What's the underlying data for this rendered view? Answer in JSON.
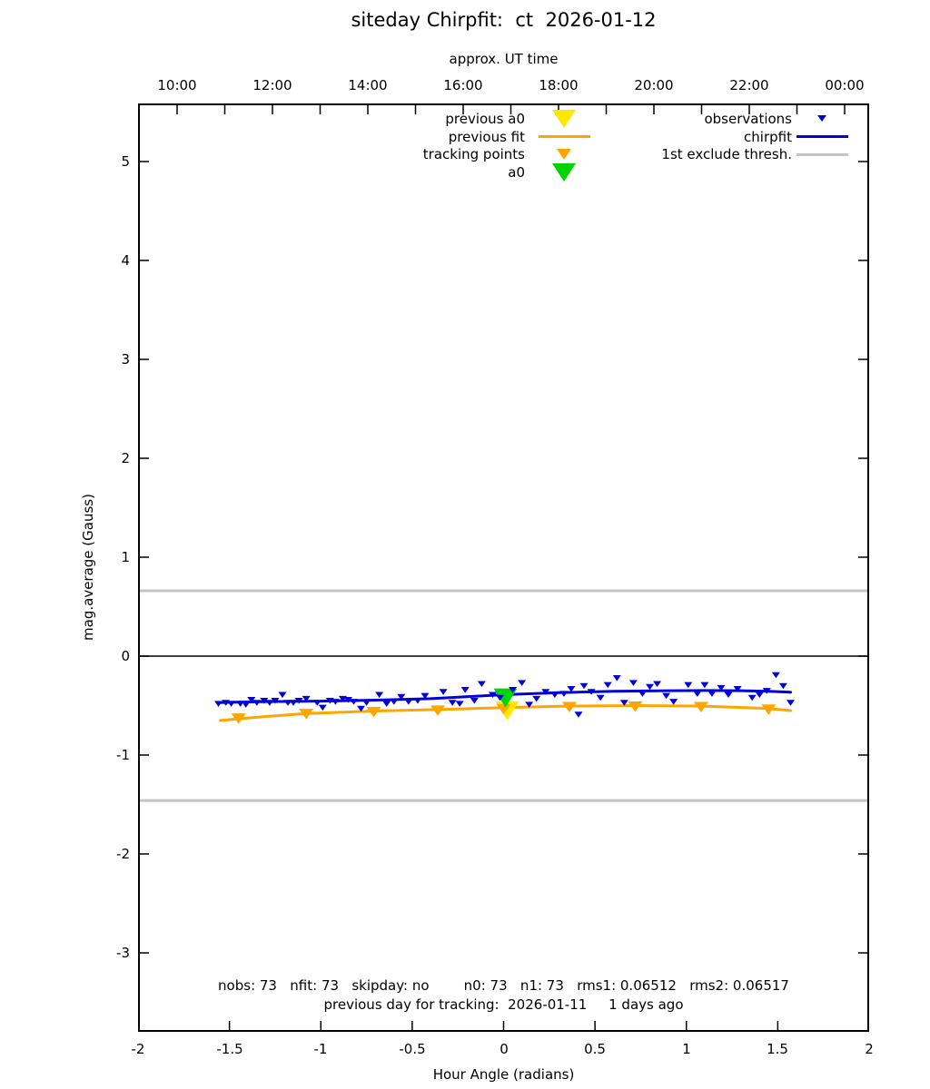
{
  "title": "siteday Chirpfit:  ct  2026-01-12",
  "stats": {
    "line1": "nobs: 73   nfit: 73   skipday: no        n0: 73   n1: 73   rms1: 0.06512   rms2: 0.06517",
    "line2": "previous day for tracking:  2026-01-11     1 days ago"
  },
  "legend": {
    "left": [
      {
        "label": "previous a0",
        "marker": "tri-big-yellow"
      },
      {
        "label": "previous fit",
        "marker": "legline-orange"
      },
      {
        "label": "tracking points",
        "marker": "tri-small-orange"
      },
      {
        "label": "a0",
        "marker": "tri-big-green"
      }
    ],
    "right": [
      {
        "label": "observations",
        "marker": "tri-tiny-blue"
      },
      {
        "label": "chirpfit",
        "marker": "legline-blue"
      },
      {
        "label": "1st exclude thresh.",
        "marker": "legline-gray"
      }
    ]
  },
  "colors": {
    "observations": "#0000dd",
    "chirpfit": "#0000dd",
    "previous_fit": "#ffa500",
    "tracking_points": "#ffa500",
    "previous_a0": "#ffe800",
    "a0": "#00d500",
    "exclude_threshold": "#c4c4c4",
    "axis": "#000000"
  },
  "chart_data": {
    "type": "scatter",
    "title": "siteday Chirpfit:  ct  2026-01-12",
    "xlabel": "Hour Angle (radians)",
    "ylabel": "mag.average (Gauss)",
    "x2label": "approx. UT time",
    "xlim": [
      -2,
      2
    ],
    "ylim": [
      -3.8,
      5.59
    ],
    "grid": false,
    "legend_position": "top-inside",
    "x_ticks": [
      -2,
      -1.5,
      -1,
      -0.5,
      0,
      0.5,
      1,
      1.5,
      2
    ],
    "y_ticks": [
      5,
      4,
      3,
      2,
      1,
      0,
      -1,
      -2,
      -3
    ],
    "x2_ticks_hourly": [
      "10:00",
      "11:00",
      "12:00",
      "13:00",
      "14:00",
      "15:00",
      "16:00",
      "17:00",
      "18:00",
      "19:00",
      "20:00",
      "21:00",
      "22:00",
      "23:00",
      "00:00"
    ],
    "x2_labeled_every": 2,
    "zero_line_y": 0,
    "series": [
      {
        "name": "1st exclude thresh.",
        "type": "hline",
        "color": "#c4c4c4",
        "values": [
          0.66,
          -1.46
        ]
      },
      {
        "name": "previous fit",
        "type": "line",
        "color": "#ffa500",
        "points": [
          [
            -1.55,
            -0.65
          ],
          [
            -1.3,
            -0.61
          ],
          [
            -1.08,
            -0.58
          ],
          [
            -0.71,
            -0.555
          ],
          [
            -0.36,
            -0.54
          ],
          [
            0.0,
            -0.52
          ],
          [
            0.36,
            -0.505
          ],
          [
            0.72,
            -0.5
          ],
          [
            1.08,
            -0.505
          ],
          [
            1.45,
            -0.53
          ],
          [
            1.57,
            -0.55
          ]
        ]
      },
      {
        "name": "chirpfit",
        "type": "line",
        "color": "#0000dd",
        "points": [
          [
            -1.56,
            -0.47
          ],
          [
            -1.3,
            -0.46
          ],
          [
            -1.0,
            -0.455
          ],
          [
            -0.7,
            -0.445
          ],
          [
            -0.4,
            -0.43
          ],
          [
            -0.1,
            -0.4
          ],
          [
            0.0,
            -0.39
          ],
          [
            0.3,
            -0.37
          ],
          [
            0.6,
            -0.355
          ],
          [
            0.9,
            -0.35
          ],
          [
            1.1,
            -0.348
          ],
          [
            1.3,
            -0.35
          ],
          [
            1.45,
            -0.355
          ],
          [
            1.57,
            -0.365
          ]
        ]
      },
      {
        "name": "previous a0",
        "type": "scatter",
        "marker": "triangle-down-large",
        "color": "#ffe800",
        "points": [
          [
            0.02,
            -0.53
          ]
        ]
      },
      {
        "name": "tracking points",
        "type": "scatter",
        "marker": "triangle-down-medium",
        "color": "#ffa500",
        "points": [
          [
            -1.45,
            -0.62
          ],
          [
            -1.08,
            -0.575
          ],
          [
            -0.71,
            -0.555
          ],
          [
            -0.36,
            -0.54
          ],
          [
            0.0,
            -0.525
          ],
          [
            0.36,
            -0.505
          ],
          [
            0.72,
            -0.5
          ],
          [
            1.08,
            -0.505
          ],
          [
            1.45,
            -0.53
          ]
        ]
      },
      {
        "name": "a0",
        "type": "scatter",
        "marker": "triangle-down-large",
        "color": "#00d500",
        "points": [
          [
            0.01,
            -0.4
          ]
        ]
      },
      {
        "name": "observations",
        "type": "scatter",
        "marker": "triangle-down-small",
        "color": "#0000dd",
        "points": [
          [
            -1.56,
            -0.48
          ],
          [
            -1.52,
            -0.47
          ],
          [
            -1.49,
            -0.48
          ],
          [
            -1.44,
            -0.48
          ],
          [
            -1.41,
            -0.49
          ],
          [
            -1.38,
            -0.44
          ],
          [
            -1.35,
            -0.47
          ],
          [
            -1.31,
            -0.45
          ],
          [
            -1.28,
            -0.47
          ],
          [
            -1.25,
            -0.45
          ],
          [
            -1.21,
            -0.39
          ],
          [
            -1.18,
            -0.47
          ],
          [
            -1.15,
            -0.47
          ],
          [
            -1.12,
            -0.45
          ],
          [
            -1.08,
            -0.43
          ],
          [
            -1.02,
            -0.47
          ],
          [
            -0.99,
            -0.52
          ],
          [
            -0.95,
            -0.45
          ],
          [
            -0.92,
            -0.46
          ],
          [
            -0.88,
            -0.43
          ],
          [
            -0.85,
            -0.44
          ],
          [
            -0.82,
            -0.46
          ],
          [
            -0.78,
            -0.53
          ],
          [
            -0.75,
            -0.47
          ],
          [
            -0.68,
            -0.39
          ],
          [
            -0.64,
            -0.48
          ],
          [
            -0.6,
            -0.46
          ],
          [
            -0.56,
            -0.41
          ],
          [
            -0.52,
            -0.46
          ],
          [
            -0.47,
            -0.45
          ],
          [
            -0.43,
            -0.4
          ],
          [
            -0.33,
            -0.36
          ],
          [
            -0.28,
            -0.47
          ],
          [
            -0.24,
            -0.48
          ],
          [
            -0.21,
            -0.34
          ],
          [
            -0.16,
            -0.45
          ],
          [
            -0.12,
            -0.28
          ],
          [
            -0.06,
            -0.39
          ],
          [
            -0.02,
            -0.42
          ],
          [
            0.05,
            -0.34
          ],
          [
            0.1,
            -0.27
          ],
          [
            0.14,
            -0.49
          ],
          [
            0.18,
            -0.43
          ],
          [
            0.23,
            -0.36
          ],
          [
            0.28,
            -0.39
          ],
          [
            0.33,
            -0.38
          ],
          [
            0.37,
            -0.33
          ],
          [
            0.41,
            -0.59
          ],
          [
            0.44,
            -0.3
          ],
          [
            0.48,
            -0.36
          ],
          [
            0.53,
            -0.42
          ],
          [
            0.57,
            -0.29
          ],
          [
            0.62,
            -0.22
          ],
          [
            0.66,
            -0.47
          ],
          [
            0.71,
            -0.27
          ],
          [
            0.76,
            -0.38
          ],
          [
            0.8,
            -0.31
          ],
          [
            0.84,
            -0.28
          ],
          [
            0.89,
            -0.4
          ],
          [
            0.93,
            -0.46
          ],
          [
            1.01,
            -0.29
          ],
          [
            1.06,
            -0.38
          ],
          [
            1.1,
            -0.29
          ],
          [
            1.14,
            -0.38
          ],
          [
            1.19,
            -0.32
          ],
          [
            1.23,
            -0.39
          ],
          [
            1.28,
            -0.33
          ],
          [
            1.36,
            -0.42
          ],
          [
            1.4,
            -0.39
          ],
          [
            1.44,
            -0.35
          ],
          [
            1.49,
            -0.19
          ],
          [
            1.53,
            -0.3
          ],
          [
            1.57,
            -0.47
          ]
        ]
      }
    ]
  }
}
